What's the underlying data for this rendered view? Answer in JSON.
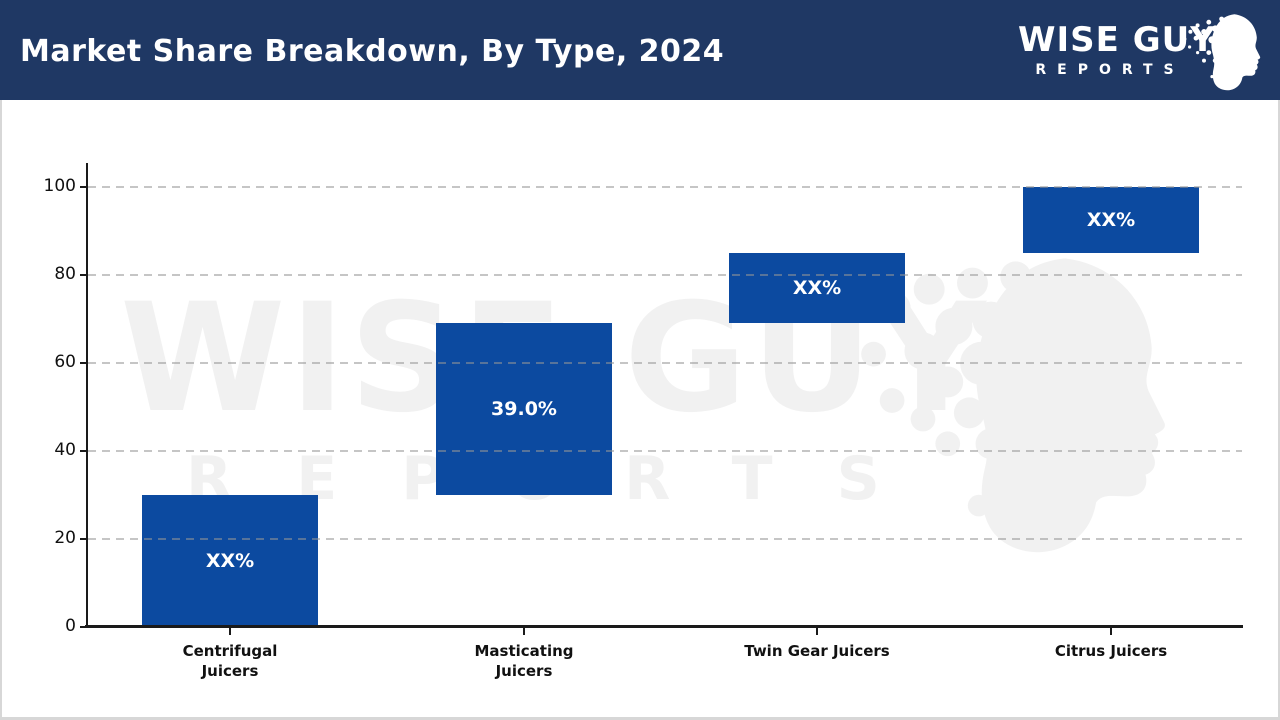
{
  "header": {
    "title": "Market Share Breakdown, By Type, 2024",
    "bg_color": "#1f3864",
    "logo": {
      "line1": "WISE GUY",
      "line2": "REPORTS"
    }
  },
  "watermark": {
    "line1": "WISE GUY",
    "line2": "REPORTS"
  },
  "chart_data": {
    "type": "bar",
    "subtype": "waterfall-floating-bars",
    "title": "Market Share Breakdown, By Type, 2024",
    "categories": [
      "Centrifugal\nJuicers",
      "Masticating\nJuicers",
      "Twin Gear Juicers",
      "Citrus Juicers"
    ],
    "segments": [
      {
        "category": "Centrifugal Juicers",
        "start": 0,
        "end": 30,
        "value_label": "XX%"
      },
      {
        "category": "Masticating Juicers",
        "start": 30,
        "end": 69,
        "value_label": "39.0%"
      },
      {
        "category": "Twin Gear Juicers",
        "start": 69,
        "end": 85,
        "value_label": "XX%"
      },
      {
        "category": "Citrus Juicers",
        "start": 85,
        "end": 100,
        "value_label": "XX%"
      }
    ],
    "ylabel": "",
    "xlabel": "",
    "ylim": [
      0,
      105
    ],
    "yticks": [
      0,
      20,
      40,
      60,
      80,
      100
    ],
    "grid": "horizontal-dashed",
    "legend": "none",
    "bar_color": "#0c4aa0",
    "value_label_color": "#ffffff"
  }
}
